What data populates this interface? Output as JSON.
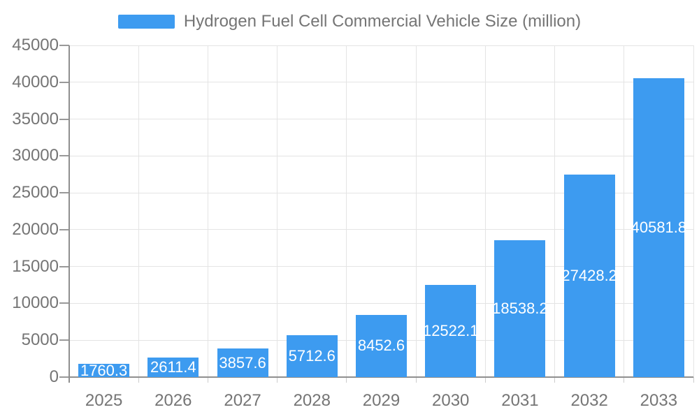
{
  "chart_data": {
    "type": "bar",
    "title": "Hydrogen Fuel Cell Commercial Vehicle Size (million)",
    "legend": [
      "Hydrogen Fuel Cell Commercial Vehicle Size (million)"
    ],
    "legend_position": "top-center",
    "categories": [
      "2025",
      "2026",
      "2027",
      "2028",
      "2029",
      "2030",
      "2031",
      "2032",
      "2033"
    ],
    "values": [
      1760.3,
      2611.4,
      3857.6,
      5712.6,
      8452.6,
      12522.1,
      18538.2,
      27428.2,
      40581.8
    ],
    "value_labels": [
      "1760.3",
      "2611.4",
      "3857.6",
      "5712.6",
      "8452.6",
      "12522.1",
      "18538.2",
      "27428.2",
      "40581.8"
    ],
    "xlabel": "",
    "ylabel": "",
    "ylim": [
      0,
      45000
    ],
    "y_ticks": [
      0,
      5000,
      10000,
      15000,
      20000,
      25000,
      30000,
      35000,
      40000,
      45000
    ],
    "grid": true,
    "bar_color": "#3d9bf0",
    "bar_label_color": "#ffffff",
    "axis_text_color": "#757575",
    "gridline_color": "#e4e4e4",
    "axis_line_color": "#8f8f8f"
  }
}
